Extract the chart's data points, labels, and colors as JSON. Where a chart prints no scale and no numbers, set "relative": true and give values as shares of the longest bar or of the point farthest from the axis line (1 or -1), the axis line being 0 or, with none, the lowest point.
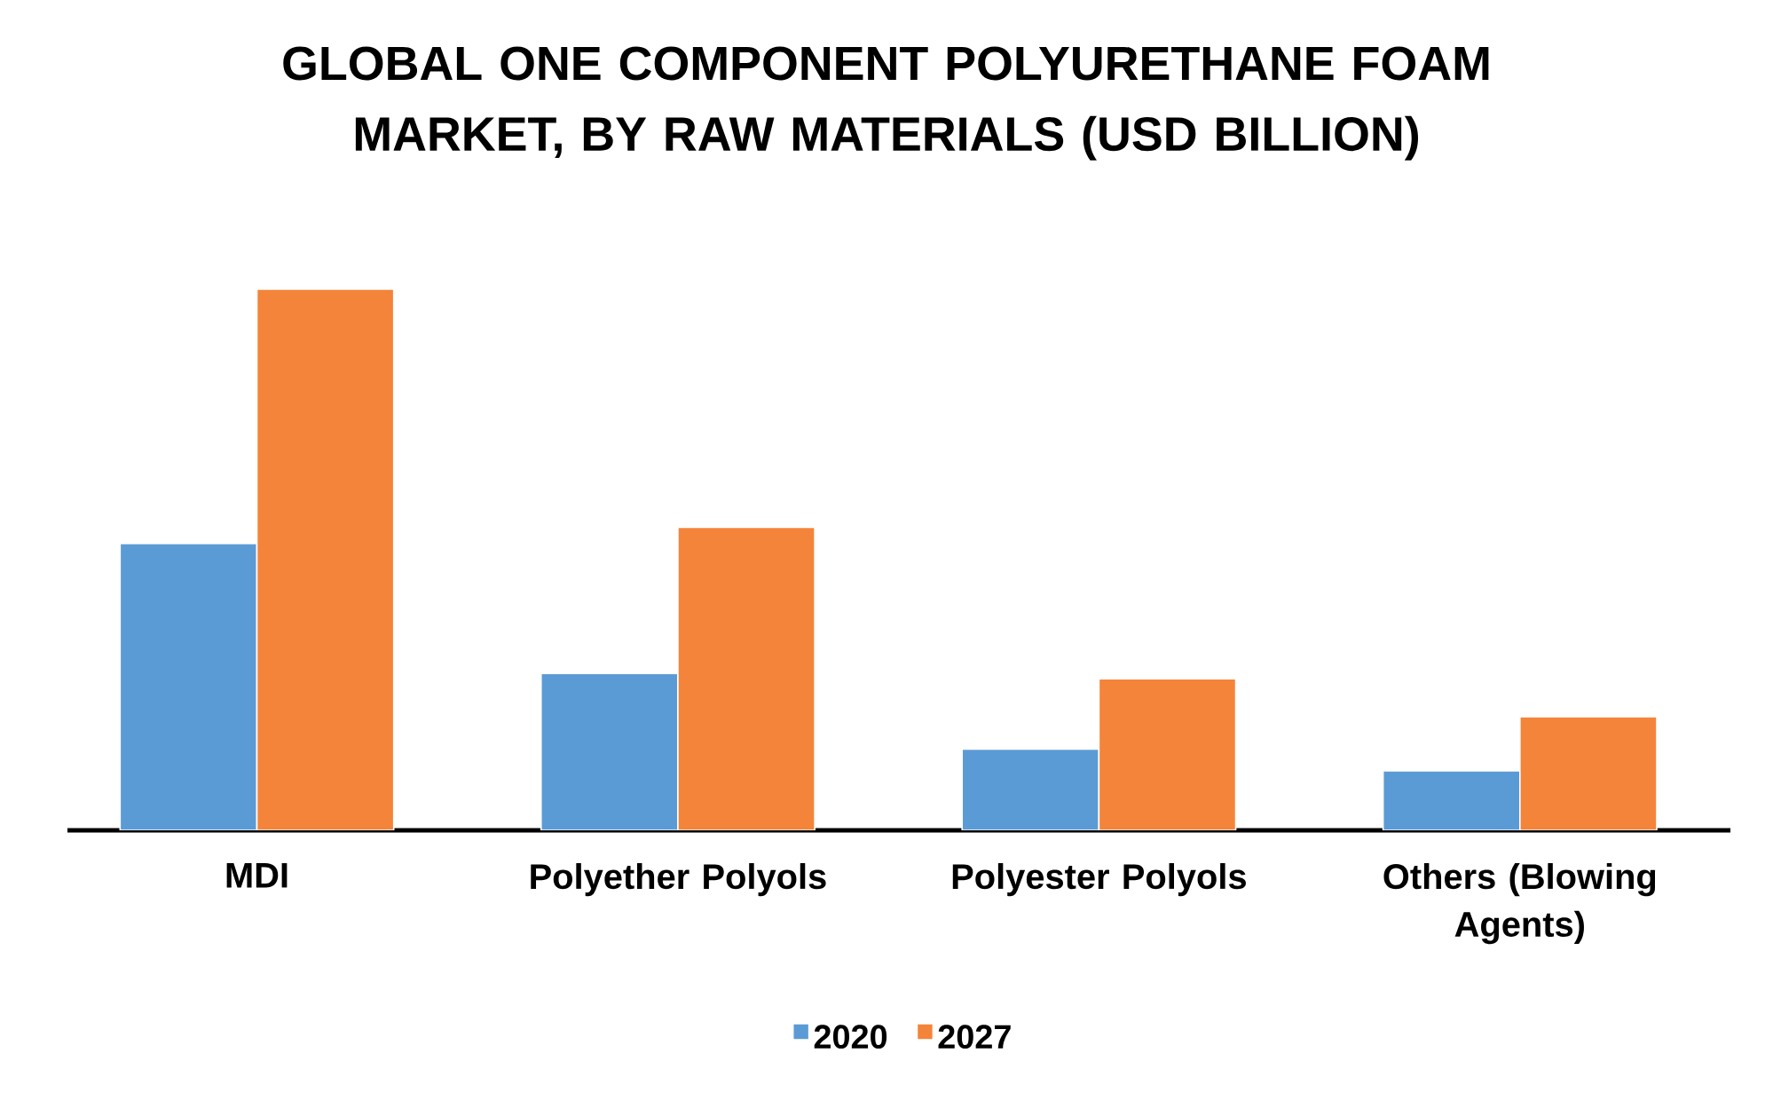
{
  "chart_data": {
    "type": "bar",
    "title": "GLOBAL ONE COMPONENT POLYURETHANE FOAM MARKET, BY RAW MATERIALS (USD BILLION)",
    "categories": [
      "MDI",
      "Polyether Polyols",
      "Polyester Polyols",
      "Others (Blowing Agents)"
    ],
    "series": [
      {
        "name": "2020",
        "color": "#5b9bd5",
        "values": [
          0.53,
          0.29,
          0.15,
          0.11
        ]
      },
      {
        "name": "2027",
        "color": "#f4843a",
        "values": [
          1,
          0.56,
          0.28,
          0.21
        ]
      }
    ],
    "relative": true,
    "legend": "bottom"
  }
}
